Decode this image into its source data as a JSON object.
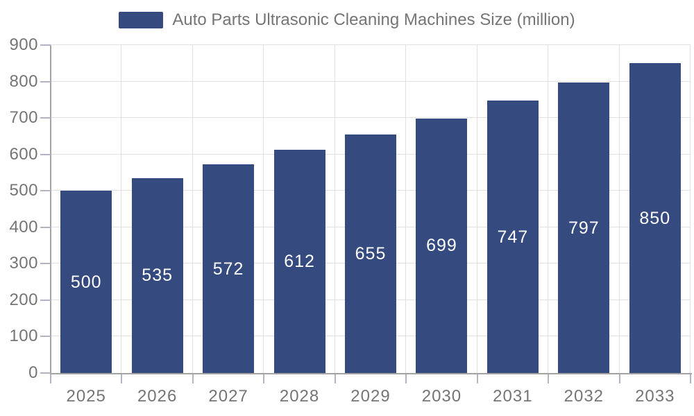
{
  "chart_data": {
    "type": "bar",
    "title": "Auto Parts Ultrasonic Cleaning Machines Size (million)",
    "categories": [
      "2025",
      "2026",
      "2027",
      "2028",
      "2029",
      "2030",
      "2031",
      "2032",
      "2033"
    ],
    "values": [
      500,
      535,
      572,
      612,
      655,
      699,
      747,
      797,
      850
    ],
    "series": [
      {
        "name": "Auto Parts Ultrasonic Cleaning Machines Size (million)",
        "values": [
          500,
          535,
          572,
          612,
          655,
          699,
          747,
          797,
          850
        ]
      }
    ],
    "xlabel": "",
    "ylabel": "",
    "ylim": [
      0,
      900
    ],
    "ytick_step": 100,
    "yticks": [
      "0",
      "100",
      "200",
      "300",
      "400",
      "500",
      "600",
      "700",
      "800",
      "900"
    ],
    "grid": true,
    "legend_position": "top-center",
    "bar_labels_visible": true,
    "colors": {
      "bar": "#354a7f",
      "grid": "#e0e0e0",
      "axis": "#a3a3a3",
      "tick": "#b0b5c4",
      "text": "#757575",
      "bar_label": "#ffffff",
      "background": "#ffffff"
    }
  }
}
